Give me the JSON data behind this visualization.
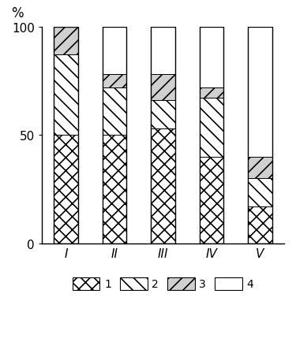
{
  "categories": [
    "I",
    "II",
    "III",
    "IV",
    "V"
  ],
  "segments": {
    "seg1": [
      50,
      50,
      53,
      40,
      17
    ],
    "seg2": [
      37,
      22,
      13,
      27,
      13
    ],
    "seg3": [
      13,
      6,
      12,
      5,
      10
    ],
    "seg4": [
      0,
      22,
      22,
      28,
      60
    ]
  },
  "seg_labels": [
    "1",
    "2",
    "3",
    "4"
  ],
  "ylabel": "%",
  "yticks": [
    0,
    50,
    100
  ],
  "ylim": [
    0,
    100
  ],
  "bar_width": 0.5,
  "bg_color": "#ffffff"
}
